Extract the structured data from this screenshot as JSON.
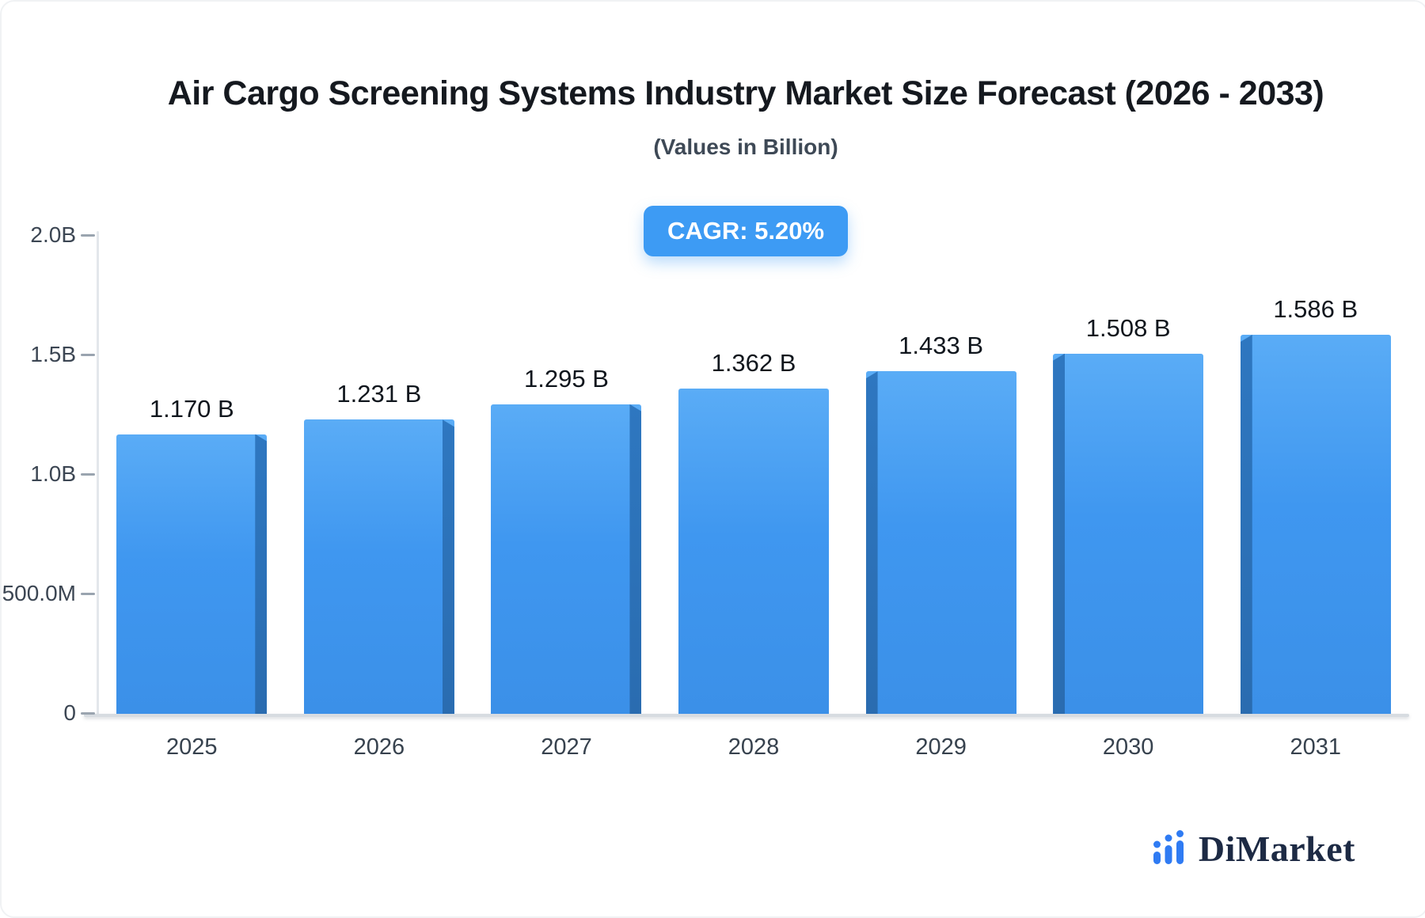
{
  "title": "Air Cargo Screening Systems Industry Market Size Forecast (2026 - 2033)",
  "subtitle": "(Values in Billion)",
  "cagr_badge": "CAGR: 5.20%",
  "brand": {
    "name": "DiMarket",
    "icon": "dimarket-logo-icon"
  },
  "chart_data": {
    "type": "bar",
    "title": "Air Cargo Screening Systems Industry Market Size Forecast (2026 - 2033)",
    "subtitle": "(Values in Billion)",
    "cagr_percent": "5.20%",
    "categories": [
      "2025",
      "2026",
      "2027",
      "2028",
      "2029",
      "2030",
      "2031"
    ],
    "values": [
      1.17,
      1.231,
      1.295,
      1.362,
      1.433,
      1.508,
      1.586
    ],
    "value_labels": [
      "1.170 B",
      "1.231 B",
      "1.295 B",
      "1.362 B",
      "1.433 B",
      "1.508 B",
      "1.586 B"
    ],
    "xlabel": "",
    "ylabel": "",
    "ylim": [
      0,
      2.0
    ],
    "y_ticks": [
      {
        "value": 2.0,
        "label": "2.0B"
      },
      {
        "value": 1.5,
        "label": "1.5B"
      },
      {
        "value": 1.0,
        "label": "1.0B"
      },
      {
        "value": 0.5,
        "label": "500.0M"
      },
      {
        "value": 0,
        "label": "0"
      }
    ],
    "grid": false,
    "legend": false,
    "colors": {
      "bar": "#3F97F0",
      "bar_top_highlight": "#5AACF6",
      "bar_side": "#2B72BC",
      "badge_bg": "#3D9BF4",
      "badge_text": "#FFFFFF",
      "axis_line": "#D7DCE1",
      "title_text": "#15191F",
      "brand_text": "#1D2A44",
      "brand_icon": "#2F7BF3"
    }
  }
}
